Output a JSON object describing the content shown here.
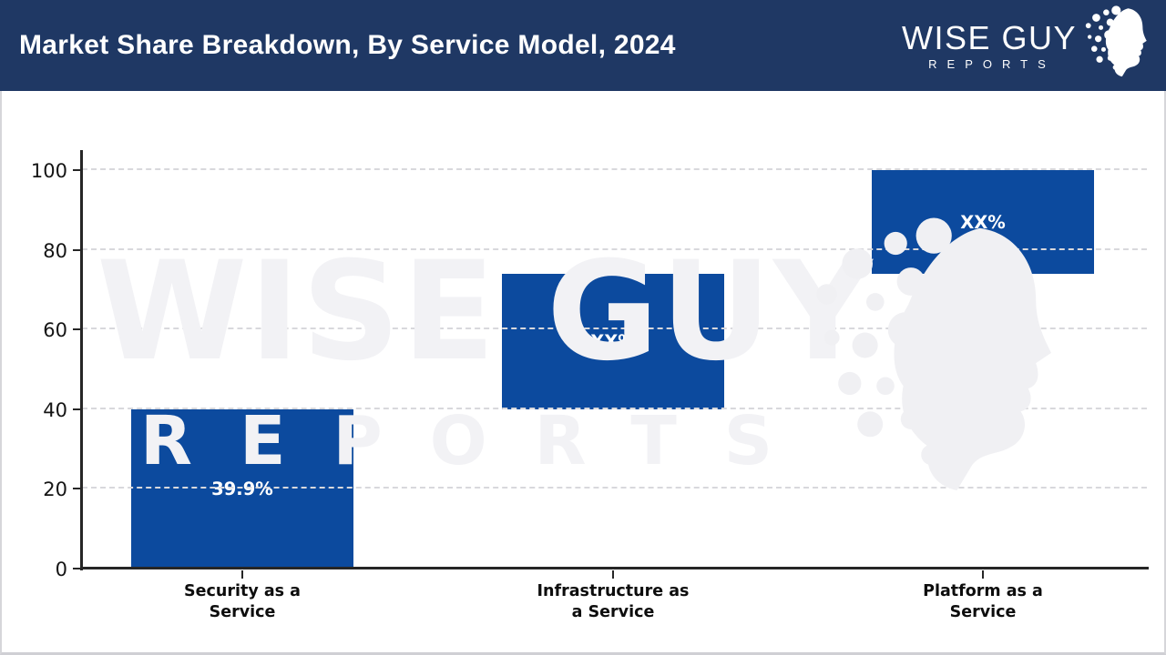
{
  "header": {
    "title": "Market Share Breakdown, By Service Model, 2024",
    "logo": {
      "name": "WISE GUY",
      "sub": "REPORTS"
    }
  },
  "watermark": {
    "name": "WISE GUY",
    "sub": "REPORTS"
  },
  "chart_data": {
    "type": "bar",
    "variant": "stacked-waterfall",
    "title": "Market Share Breakdown, By Service Model, 2024",
    "categories": [
      [
        "Security as a",
        "Service"
      ],
      [
        "Infrastructure as",
        "a Service"
      ],
      [
        "Platform as a",
        "Service"
      ]
    ],
    "bars": [
      {
        "category": "Security as a Service",
        "start": 0,
        "end": 39.9,
        "value": 39.9,
        "label": "39.9%"
      },
      {
        "category": "Infrastructure as a Service",
        "start": 39.9,
        "end": 73.9,
        "value": 34.0,
        "label": "XX%"
      },
      {
        "category": "Platform as a Service",
        "start": 73.9,
        "end": 100,
        "value": 26.1,
        "label": "XX%"
      }
    ],
    "yticks": [
      0,
      20,
      40,
      60,
      80,
      100
    ],
    "ylim": [
      0,
      105
    ],
    "xlabel": "",
    "ylabel": "",
    "grid": {
      "axis": "y",
      "style": "dashed",
      "color": "#d8d8dc"
    },
    "legend": null,
    "bar_color": "#0c4a9e",
    "bar_label_color": "#ffffff"
  },
  "colors": {
    "header_bg": "#1f3864",
    "bar": "#0c4a9e",
    "grid": "#d8d8dc",
    "axis": "#262626",
    "watermark": "#f2f2f5",
    "page_border": "#d6d6da"
  }
}
